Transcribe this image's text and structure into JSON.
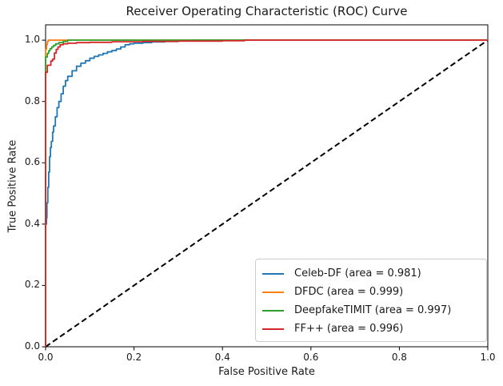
{
  "figure": {
    "background": "#ffffff",
    "text_color": "#1a1a1a",
    "spine_color": "#000000"
  },
  "chart_data": {
    "type": "line",
    "title": "Receiver Operating Characteristic (ROC) Curve",
    "xlabel": "False Positive Rate",
    "ylabel": "True Positive Rate",
    "xlim": [
      0.0,
      1.0
    ],
    "ylim": [
      0.0,
      1.05
    ],
    "grid": false,
    "legend_position": "lower right",
    "x_tick_values": [
      0.0,
      0.2,
      0.4,
      0.6,
      0.8,
      1.0
    ],
    "x_ticks": [
      "0.0",
      "0.2",
      "0.4",
      "0.6",
      "0.8",
      "1.0"
    ],
    "y_tick_values": [
      0.0,
      0.2,
      0.4,
      0.6,
      0.8,
      1.0
    ],
    "y_ticks": [
      "0.0",
      "0.2",
      "0.4",
      "0.6",
      "0.8",
      "1.0"
    ],
    "reference_line": {
      "name": "chance-diagonal",
      "style": "dashed",
      "color": "#000000",
      "points": [
        [
          0,
          0
        ],
        [
          1,
          1
        ]
      ]
    },
    "series": [
      {
        "name": "Celeb-DF",
        "label": "Celeb-DF (area = 0.981)",
        "auc": 0.981,
        "color": "#1f77b4",
        "points": [
          [
            0,
            0
          ],
          [
            0,
            0.4
          ],
          [
            0.002,
            0.42
          ],
          [
            0.003,
            0.47
          ],
          [
            0.005,
            0.52
          ],
          [
            0.007,
            0.57
          ],
          [
            0.009,
            0.62
          ],
          [
            0.011,
            0.65
          ],
          [
            0.013,
            0.67
          ],
          [
            0.016,
            0.7
          ],
          [
            0.018,
            0.72
          ],
          [
            0.022,
            0.75
          ],
          [
            0.026,
            0.78
          ],
          [
            0.03,
            0.8
          ],
          [
            0.035,
            0.825
          ],
          [
            0.04,
            0.85
          ],
          [
            0.045,
            0.868
          ],
          [
            0.05,
            0.882
          ],
          [
            0.06,
            0.9
          ],
          [
            0.07,
            0.915
          ],
          [
            0.08,
            0.925
          ],
          [
            0.09,
            0.933
          ],
          [
            0.1,
            0.941
          ],
          [
            0.11,
            0.947
          ],
          [
            0.12,
            0.952
          ],
          [
            0.13,
            0.957
          ],
          [
            0.14,
            0.962
          ],
          [
            0.15,
            0.966
          ],
          [
            0.16,
            0.971
          ],
          [
            0.17,
            0.978
          ],
          [
            0.18,
            0.985
          ],
          [
            0.19,
            0.988
          ],
          [
            0.2,
            0.99
          ],
          [
            0.22,
            0.992
          ],
          [
            0.24,
            0.994
          ],
          [
            0.27,
            0.996
          ],
          [
            0.3,
            0.998
          ],
          [
            0.33,
            1.0
          ],
          [
            1,
            1
          ]
        ]
      },
      {
        "name": "DFDC",
        "label": "DFDC (area = 0.999)",
        "auc": 0.999,
        "color": "#ff7f0e",
        "points": [
          [
            0,
            0
          ],
          [
            0,
            0.97
          ],
          [
            0.002,
            0.985
          ],
          [
            0.004,
            0.995
          ],
          [
            0.006,
            1.0
          ],
          [
            1,
            1
          ]
        ]
      },
      {
        "name": "DeepfakeTIMIT",
        "label": "DeepfakeTIMIT (area = 0.997)",
        "auc": 0.997,
        "color": "#2ca02c",
        "points": [
          [
            0,
            0
          ],
          [
            0,
            0.945
          ],
          [
            0.004,
            0.957
          ],
          [
            0.007,
            0.965
          ],
          [
            0.01,
            0.972
          ],
          [
            0.014,
            0.978
          ],
          [
            0.018,
            0.983
          ],
          [
            0.023,
            0.988
          ],
          [
            0.03,
            0.992
          ],
          [
            0.04,
            0.996
          ],
          [
            0.05,
            1.0
          ],
          [
            1,
            1
          ]
        ]
      },
      {
        "name": "FF++",
        "label": "FF++ (area = 0.996)",
        "auc": 0.996,
        "color": "#d62728",
        "points": [
          [
            0,
            0
          ],
          [
            0,
            0.895
          ],
          [
            0.004,
            0.895
          ],
          [
            0.004,
            0.918
          ],
          [
            0.012,
            0.918
          ],
          [
            0.012,
            0.932
          ],
          [
            0.016,
            0.938
          ],
          [
            0.02,
            0.958
          ],
          [
            0.024,
            0.97
          ],
          [
            0.028,
            0.978
          ],
          [
            0.033,
            0.985
          ],
          [
            0.04,
            0.988
          ],
          [
            0.05,
            0.99
          ],
          [
            0.07,
            0.992
          ],
          [
            0.1,
            0.993
          ],
          [
            0.15,
            0.995
          ],
          [
            0.22,
            0.996
          ],
          [
            0.3,
            0.997
          ],
          [
            0.4,
            0.998
          ],
          [
            0.45,
            1.0
          ],
          [
            1,
            1
          ]
        ]
      }
    ]
  }
}
